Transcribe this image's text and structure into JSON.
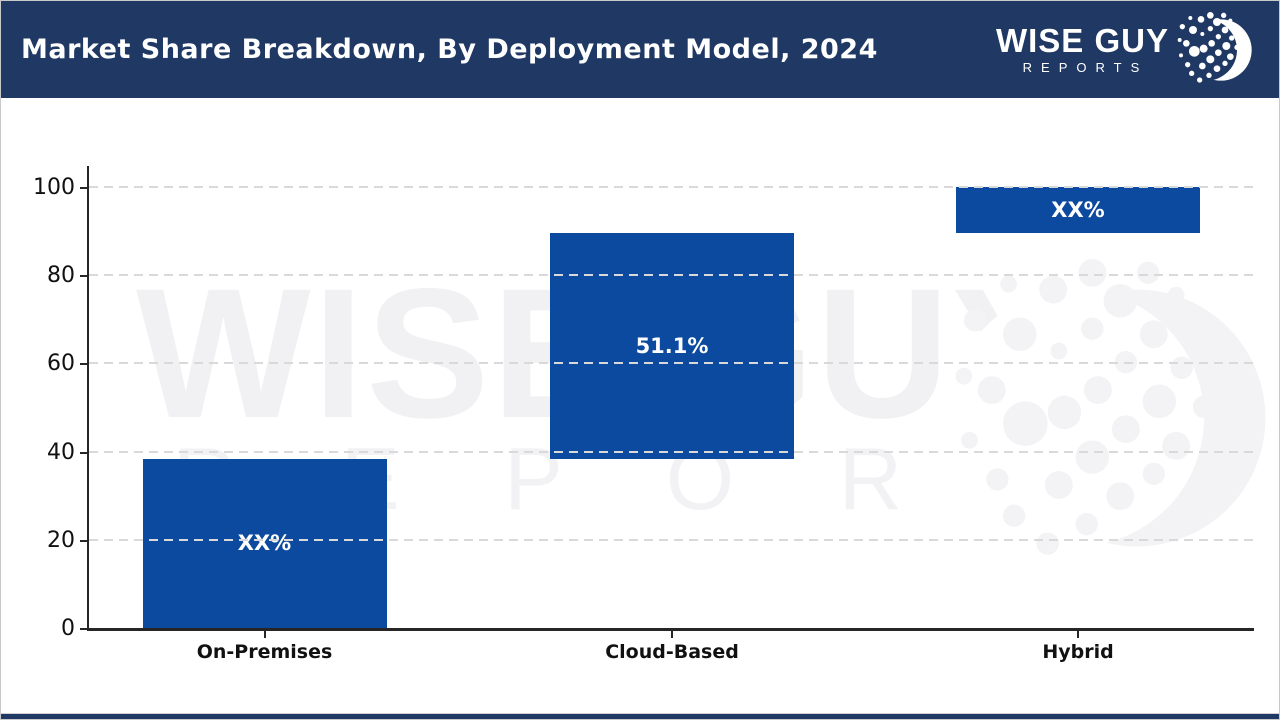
{
  "header": {
    "title": "Market Share Breakdown, By Deployment Model, 2024",
    "bg_color": "#1f3864",
    "logo": {
      "line1": "WISE GUY",
      "line2": "REPORTS"
    }
  },
  "watermark": {
    "line1": "WISE GUY",
    "line2": "R E P O R T S"
  },
  "colors": {
    "header_bg": "#1f3864",
    "bar_blue": "#0b4a9e",
    "axis": "#262626",
    "grid": "#d9d9d9",
    "text": "#111111",
    "watermark": "#f2f2f5"
  },
  "chart_data": {
    "type": "bar",
    "variant": "waterfall",
    "title": "Market Share Breakdown, By Deployment Model, 2024",
    "categories": [
      "On-Premises",
      "Cloud-Based",
      "Hybrid"
    ],
    "segments": [
      {
        "category": "On-Premises",
        "start": 0,
        "end": 38.4,
        "label": "XX%"
      },
      {
        "category": "Cloud-Based",
        "start": 38.4,
        "end": 89.5,
        "label": "51.1%"
      },
      {
        "category": "Hybrid",
        "start": 89.5,
        "end": 100,
        "label": "XX%"
      }
    ],
    "yticks": [
      0,
      20,
      40,
      60,
      80,
      100
    ],
    "ylim": [
      0,
      104.8
    ],
    "xlabel": "",
    "ylabel": "",
    "grid": "horizontal-dashed-over-bars",
    "legend": "none",
    "bar_color": "#0b4a9e",
    "bar_label_color": "#ffffff"
  }
}
